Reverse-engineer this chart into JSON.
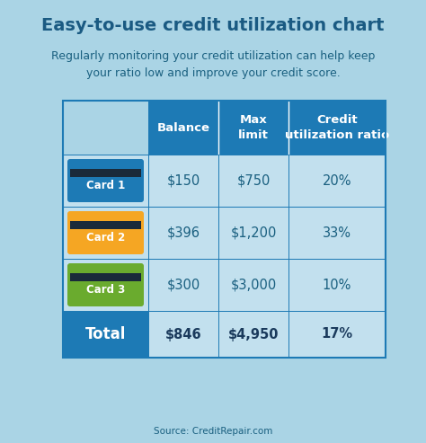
{
  "title": "Easy-to-use credit utilization chart",
  "subtitle": "Regularly monitoring your credit utilization can help keep\nyour ratio low and improve your credit score.",
  "source": "Source: CreditRepair.com",
  "bg_color": "#aad4e5",
  "header_bg": "#1d7ab5",
  "header_text_color": "#ffffff",
  "row_bg_light": "#c2e0ee",
  "row_bg_lighter": "#d4ecf5",
  "row_border": "#1d7ab5",
  "total_row_bg": "#1d7ab5",
  "total_text_color": "#ffffff",
  "rows": [
    {
      "label": "Card 1",
      "card_color": "#1d7ab5",
      "balance": "$150",
      "max_limit": "$750",
      "ratio": "20%"
    },
    {
      "label": "Card 2",
      "card_color": "#f5a623",
      "balance": "$396",
      "max_limit": "$1,200",
      "ratio": "33%"
    },
    {
      "label": "Card 3",
      "card_color": "#6aab2e",
      "balance": "$300",
      "max_limit": "$3,000",
      "ratio": "10%"
    }
  ],
  "total_row": {
    "label": "Total",
    "balance": "$846",
    "max_limit": "$4,950",
    "ratio": "17%"
  },
  "card_stripe_color": "#1a2a3a",
  "title_color": "#1a5a82",
  "subtitle_color": "#1a6080",
  "data_text_color": "#1a6080",
  "total_data_color": "#1a3a5c"
}
